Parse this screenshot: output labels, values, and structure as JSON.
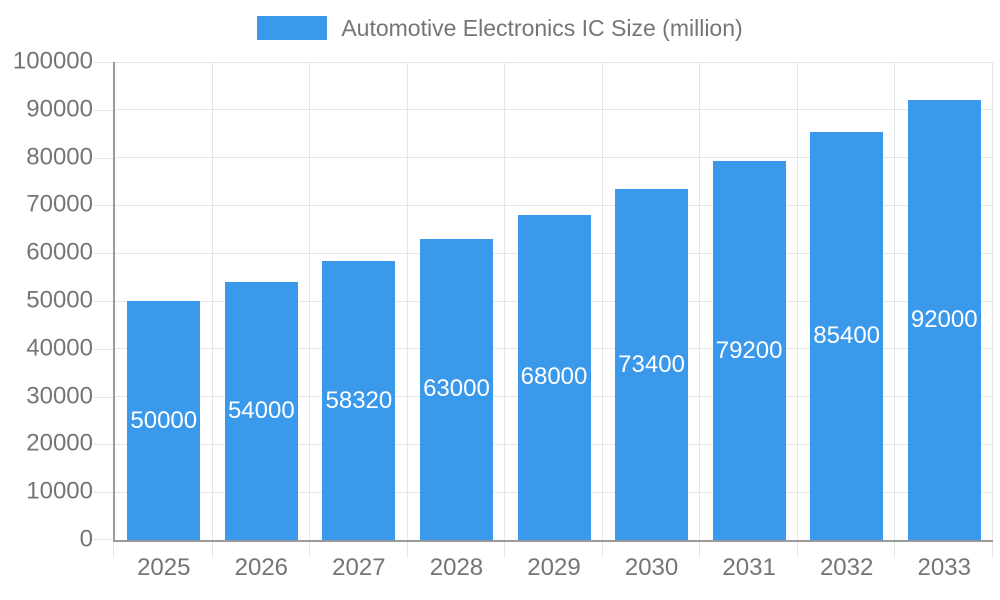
{
  "legend": {
    "entries": [
      "Automotive Electronics IC Size (million)"
    ]
  },
  "chart_data": {
    "type": "bar",
    "title": "Automotive Electronics IC Size (million)",
    "series_name": "Automotive Electronics IC Size (million)",
    "categories": [
      "2025",
      "2026",
      "2027",
      "2028",
      "2029",
      "2030",
      "2031",
      "2032",
      "2033"
    ],
    "values": [
      50000,
      54000,
      58320,
      63000,
      68000,
      73400,
      79200,
      85400,
      92000
    ],
    "bar_value_labels": [
      "50000",
      "54000",
      "58320",
      "63000",
      "68000",
      "73400",
      "79200",
      "85400",
      "92000"
    ],
    "xlabel": "",
    "ylabel": "",
    "ylim": [
      0,
      100000
    ],
    "ytick_step": 10000,
    "y_tick_labels": [
      "0",
      "10000",
      "20000",
      "30000",
      "40000",
      "50000",
      "60000",
      "70000",
      "80000",
      "90000",
      "100000"
    ],
    "grid": true,
    "legend_position": "top-center",
    "colors": {
      "bar": "#3b99ec",
      "grid": "#e6e6e6",
      "axis": "#9a9a9a",
      "tick_text": "#757575",
      "bar_label_text": "#ffffff",
      "background": "#ffffff"
    }
  }
}
